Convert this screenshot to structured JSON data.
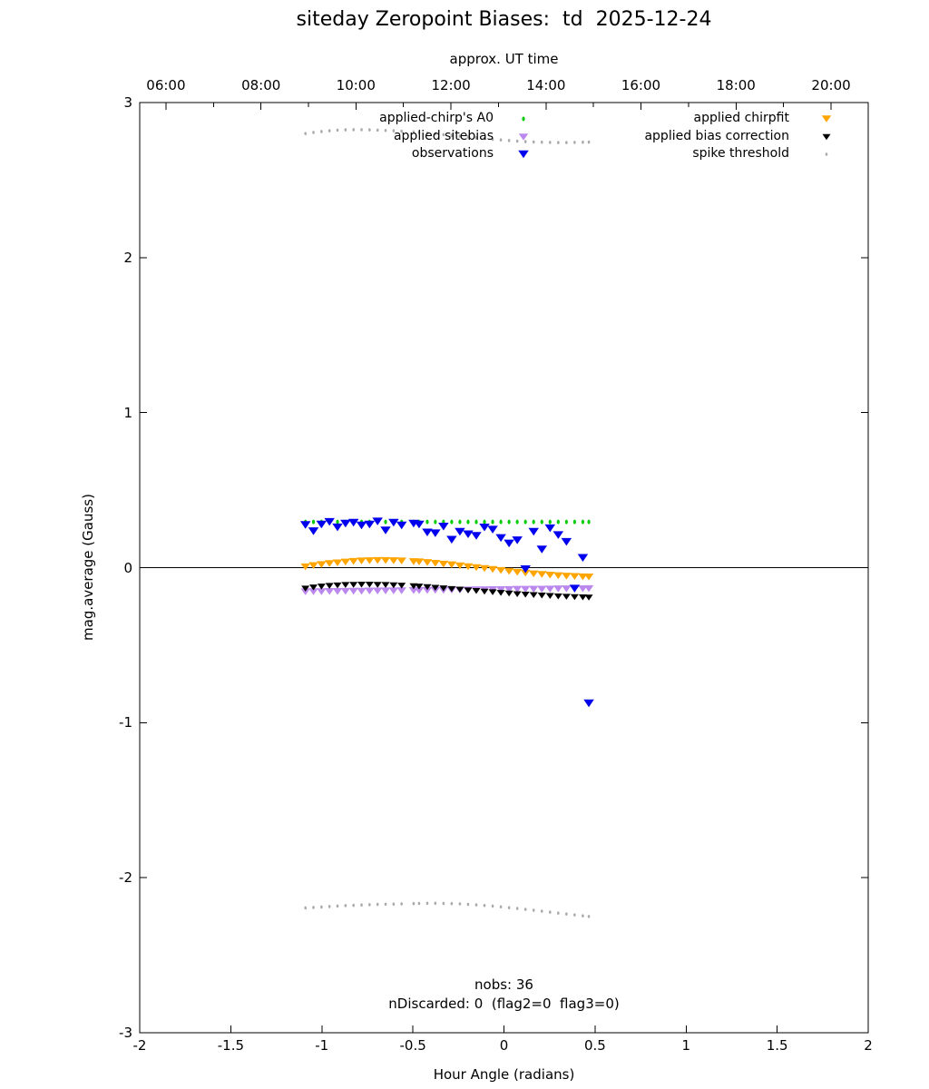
{
  "title": "siteday Zeropoint Biases:  td  2025-12-24",
  "annotations": {
    "nobs": "nobs: 36",
    "ndiscarded": "nDiscarded: 0  (flag2=0  flag3=0)"
  },
  "legend": {
    "left": [
      {
        "label": "applied-chirp's A0",
        "marker": "dot",
        "color": "#00cc00"
      },
      {
        "label": "applied sitebias",
        "marker": "triangle-down",
        "color": "#bb88ee"
      },
      {
        "label": "observations",
        "marker": "triangle-down-large",
        "color": "#0000ee"
      }
    ],
    "right": [
      {
        "label": "applied chirpfit",
        "marker": "triangle-down",
        "color": "#ffa500"
      },
      {
        "label": "applied bias correction",
        "marker": "triangle-down-small",
        "color": "#000000"
      },
      {
        "label": "spike threshold",
        "marker": "dot-small",
        "color": "#aaaaaa"
      }
    ]
  },
  "chart_data": {
    "type": "scatter",
    "title": "siteday Zeropoint Biases:  td  2025-12-24",
    "xlabel": "Hour Angle (radians)",
    "ylabel": "mag.average (Gauss)",
    "xlim": [
      -2,
      2
    ],
    "ylim": [
      -3,
      3
    ],
    "grid": false,
    "legend_position": "top",
    "x_axis": {
      "label": "Hour Angle (radians)",
      "ticks": [
        {
          "v": -2,
          "label": "-2"
        },
        {
          "v": -1.5,
          "label": "-1.5"
        },
        {
          "v": -1,
          "label": "-1"
        },
        {
          "v": -0.5,
          "label": "-0.5"
        },
        {
          "v": 0,
          "label": "0"
        },
        {
          "v": 0.5,
          "label": "0.5"
        },
        {
          "v": 1,
          "label": "1"
        },
        {
          "v": 1.5,
          "label": "1.5"
        },
        {
          "v": 2,
          "label": "2"
        }
      ]
    },
    "y_axis": {
      "label": "mag.average (Gauss)",
      "ticks": [
        {
          "v": 3,
          "label": "3"
        },
        {
          "v": 2,
          "label": "2"
        },
        {
          "v": 1,
          "label": "1"
        },
        {
          "v": 0,
          "label": "0"
        },
        {
          "v": -1,
          "label": "-1"
        },
        {
          "v": -2,
          "label": "-2"
        },
        {
          "v": -3,
          "label": "-3"
        }
      ]
    },
    "top_axis": {
      "label": "approx. UT time",
      "ticks": [
        {
          "ha": -1.856,
          "label": "06:00"
        },
        {
          "ha": -1.334,
          "label": "08:00"
        },
        {
          "ha": -0.813,
          "label": "10:00"
        },
        {
          "ha": -0.291,
          "label": "12:00"
        },
        {
          "ha": 0.231,
          "label": "14:00"
        },
        {
          "ha": 0.752,
          "label": "16:00"
        },
        {
          "ha": 1.274,
          "label": "18:00"
        },
        {
          "ha": 1.796,
          "label": "20:00"
        }
      ],
      "minor_ha": [
        -1.595,
        -1.073,
        -0.552,
        -0.03,
        0.491,
        1.013,
        1.535
      ]
    },
    "x": [
      -1.09,
      -1.046,
      -1.002,
      -0.958,
      -0.914,
      -0.87,
      -0.826,
      -0.782,
      -0.738,
      -0.694,
      -0.65,
      -0.606,
      -0.562,
      -0.496,
      -0.466,
      -0.421,
      -0.377,
      -0.332,
      -0.287,
      -0.242,
      -0.197,
      -0.152,
      -0.107,
      -0.062,
      -0.017,
      0.028,
      0.073,
      0.118,
      0.163,
      0.208,
      0.253,
      0.298,
      0.343,
      0.388,
      0.433,
      0.466
    ],
    "series": [
      {
        "name": "spike threshold",
        "marker": "dot-small",
        "color": "#aaaaaa",
        "values_upper": [
          2.8,
          2.807,
          2.813,
          2.818,
          2.822,
          2.824,
          2.825,
          2.825,
          2.824,
          2.822,
          2.82,
          2.818,
          2.815,
          2.81,
          2.807,
          2.803,
          2.798,
          2.793,
          2.788,
          2.783,
          2.778,
          2.773,
          2.768,
          2.763,
          2.759,
          2.755,
          2.751,
          2.748,
          2.746,
          2.744,
          2.743,
          2.742,
          2.742,
          2.743,
          2.744,
          2.745
        ],
        "values_lower": [
          -2.195,
          -2.192,
          -2.189,
          -2.186,
          -2.183,
          -2.18,
          -2.178,
          -2.176,
          -2.174,
          -2.172,
          -2.171,
          -2.17,
          -2.169,
          -2.167,
          -2.166,
          -2.165,
          -2.165,
          -2.166,
          -2.167,
          -2.169,
          -2.172,
          -2.175,
          -2.179,
          -2.183,
          -2.188,
          -2.193,
          -2.198,
          -2.204,
          -2.21,
          -2.216,
          -2.222,
          -2.228,
          -2.234,
          -2.24,
          -2.246,
          -2.25
        ]
      },
      {
        "name": "applied-chirp's A0",
        "marker": "dot",
        "color": "#00cc00",
        "values": [
          0.295,
          0.295,
          0.295,
          0.295,
          0.295,
          0.295,
          0.295,
          0.295,
          0.295,
          0.295,
          0.295,
          0.295,
          0.295,
          0.295,
          0.295,
          0.295,
          0.295,
          0.295,
          0.295,
          0.295,
          0.295,
          0.295,
          0.295,
          0.295,
          0.295,
          0.295,
          0.295,
          0.295,
          0.295,
          0.295,
          0.295,
          0.295,
          0.295,
          0.295,
          0.295,
          0.295
        ]
      },
      {
        "name": "applied chirpfit",
        "marker": "triangle-down",
        "color": "#ffa500",
        "values": [
          0.005,
          0.013,
          0.02,
          0.026,
          0.031,
          0.036,
          0.04,
          0.043,
          0.045,
          0.046,
          0.046,
          0.045,
          0.043,
          0.039,
          0.037,
          0.033,
          0.028,
          0.023,
          0.018,
          0.012,
          0.006,
          0,
          -0.006,
          -0.012,
          -0.018,
          -0.024,
          -0.03,
          -0.035,
          -0.04,
          -0.044,
          -0.048,
          -0.052,
          -0.055,
          -0.057,
          -0.059,
          -0.06
        ]
      },
      {
        "name": "applied sitebias",
        "marker": "triangle-down",
        "color": "#bb88ee",
        "values": [
          -0.156,
          -0.155,
          -0.155,
          -0.154,
          -0.154,
          -0.153,
          -0.152,
          -0.152,
          -0.151,
          -0.151,
          -0.15,
          -0.15,
          -0.149,
          -0.148,
          -0.148,
          -0.147,
          -0.146,
          -0.146,
          -0.145,
          -0.145,
          -0.144,
          -0.143,
          -0.143,
          -0.142,
          -0.142,
          -0.141,
          -0.14,
          -0.14,
          -0.139,
          -0.139,
          -0.138,
          -0.137,
          -0.137,
          -0.136,
          -0.136,
          -0.135
        ]
      },
      {
        "name": "applied bias correction",
        "marker": "triangle-down-small",
        "color": "#000000",
        "values": [
          -0.135,
          -0.128,
          -0.122,
          -0.118,
          -0.115,
          -0.112,
          -0.111,
          -0.11,
          -0.11,
          -0.111,
          -0.112,
          -0.114,
          -0.116,
          -0.12,
          -0.122,
          -0.126,
          -0.13,
          -0.134,
          -0.138,
          -0.142,
          -0.147,
          -0.151,
          -0.155,
          -0.159,
          -0.163,
          -0.167,
          -0.171,
          -0.174,
          -0.177,
          -0.18,
          -0.183,
          -0.186,
          -0.188,
          -0.19,
          -0.192,
          -0.193
        ]
      },
      {
        "name": "observations",
        "marker": "triangle-down-large",
        "color": "#0000ee",
        "values": [
          0.275,
          0.235,
          0.278,
          0.295,
          0.26,
          0.284,
          0.29,
          0.272,
          0.278,
          0.298,
          0.24,
          0.29,
          0.272,
          0.284,
          0.278,
          0.227,
          0.222,
          0.265,
          0.18,
          0.231,
          0.215,
          0.205,
          0.259,
          0.245,
          0.191,
          0.156,
          0.176,
          -0.01,
          0.231,
          0.117,
          0.254,
          0.21,
          0.166,
          -0.135,
          0.063,
          -0.875
        ]
      }
    ]
  }
}
